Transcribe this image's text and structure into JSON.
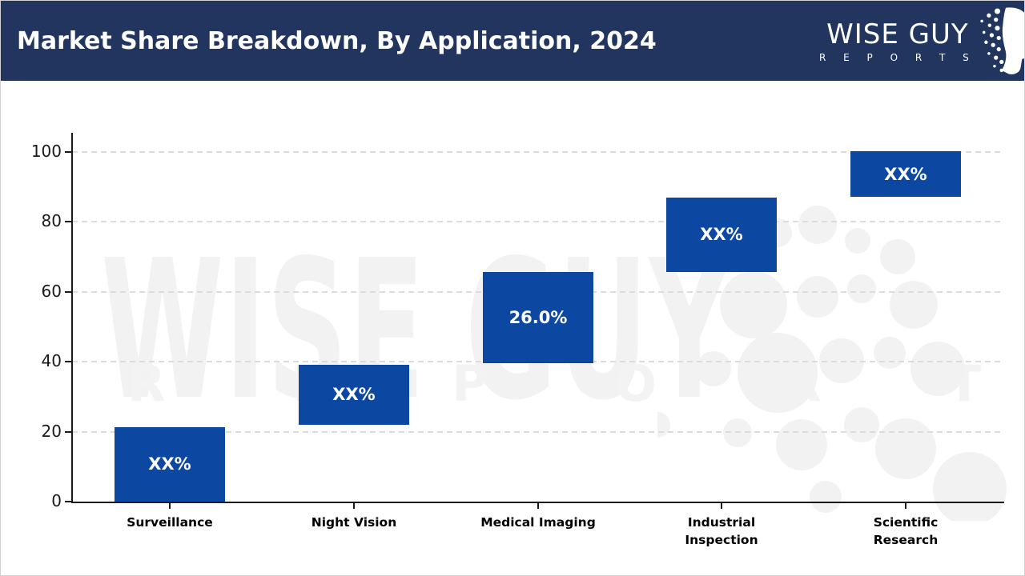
{
  "header": {
    "title": "Market Share Breakdown, By Application, 2024",
    "bg_color": "#22355e",
    "logo": {
      "line1": "WISE GUY",
      "line2": "R E P O R T S"
    }
  },
  "watermark": {
    "big": "WISE GUY",
    "small": "R E P O R T S"
  },
  "chart_data": {
    "type": "bar",
    "variant": "floating-segment waterfall, cumulative market share",
    "title": "Market Share Breakdown, By Application, 2024",
    "categories": [
      "Surveillance",
      "Night Vision",
      "Medical Imaging",
      "Industrial Inspection",
      "Scientific Research"
    ],
    "segments": [
      {
        "category": "Surveillance",
        "base": 0,
        "top": 21.3,
        "label": "XX%"
      },
      {
        "category": "Night Vision",
        "base": 22,
        "top": 39.2,
        "label": "XX%"
      },
      {
        "category": "Medical Imaging",
        "base": 39.5,
        "top": 65.5,
        "label": "26.0%"
      },
      {
        "category": "Industrial Inspection",
        "base": 65.6,
        "top": 86.9,
        "label": "XX%"
      },
      {
        "category": "Scientific Research",
        "base": 87,
        "top": 100.2,
        "label": "XX%"
      }
    ],
    "yticks": [
      0,
      20,
      40,
      60,
      80,
      100
    ],
    "ylim": [
      0,
      105
    ],
    "xlabel": "",
    "ylabel": "",
    "grid": "horizontal dashed",
    "legend": "none",
    "bar_color": "#0c47a1",
    "bar_label_color": "#ffffff",
    "axis_color": "#1a1a1a",
    "grid_color": "#dcdcdc"
  }
}
